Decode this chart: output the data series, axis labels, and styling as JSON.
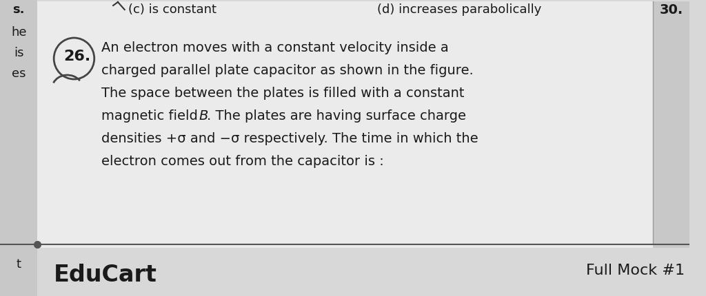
{
  "bg_color": "#d8d8d8",
  "content_color": "#ebebeb",
  "left_strip_color": "#c8c8c8",
  "right_strip_color": "#c8c8c8",
  "top_left_s": "s.",
  "top_left_he": "he",
  "top_left_is": "is",
  "top_left_es": "es",
  "top_left_t": "t",
  "top_right_number": "30.",
  "option_c": "(c) is constant",
  "option_d": "(d) increases parabolically",
  "question_number": "26.",
  "line1": "An electron moves with a constant velocity inside a",
  "line2": "charged parallel plate capacitor as shown in the figure.",
  "line3": "The space between the plates is filled with a constant",
  "line4a": "magnetic field ",
  "line4b": "B",
  "line4c": ". The plates are having surface charge",
  "line5": "densities +σ and −σ respectively. The time in which the",
  "line6": "electron comes out from the capacitor is :",
  "footer_left": "EduCart",
  "footer_right": "Full Mock #1",
  "divider_color": "#555555",
  "text_color": "#1a1a1a",
  "circle_color": "#444444"
}
